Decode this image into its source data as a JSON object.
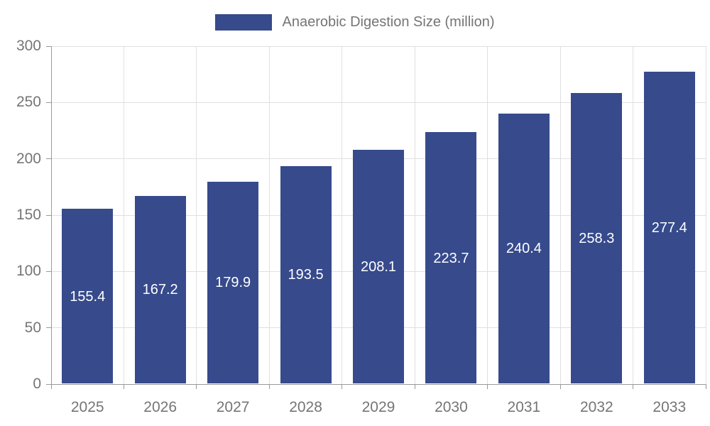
{
  "chart_data": {
    "type": "bar",
    "title": "Anaerobic Digestion Size (million)",
    "categories": [
      "2025",
      "2026",
      "2027",
      "2028",
      "2029",
      "2030",
      "2031",
      "2032",
      "2033"
    ],
    "values": [
      155.4,
      167.2,
      179.9,
      193.5,
      208.1,
      223.7,
      240.4,
      258.3,
      277.4
    ],
    "xlabel": "",
    "ylabel": "",
    "ylim": [
      0,
      300
    ],
    "yticks": [
      0,
      50,
      100,
      150,
      200,
      250,
      300
    ],
    "grid": true,
    "legend_position": "top",
    "data_labels": "inside-center",
    "colors": {
      "bar": "#364a8c",
      "bar_label": "#ffffff",
      "axis": "#999999",
      "grid": "#e0e0e0",
      "tick_label": "#757575",
      "legend_text": "#757575"
    }
  },
  "legend": {
    "label": "Anaerobic Digestion Size (million)"
  }
}
